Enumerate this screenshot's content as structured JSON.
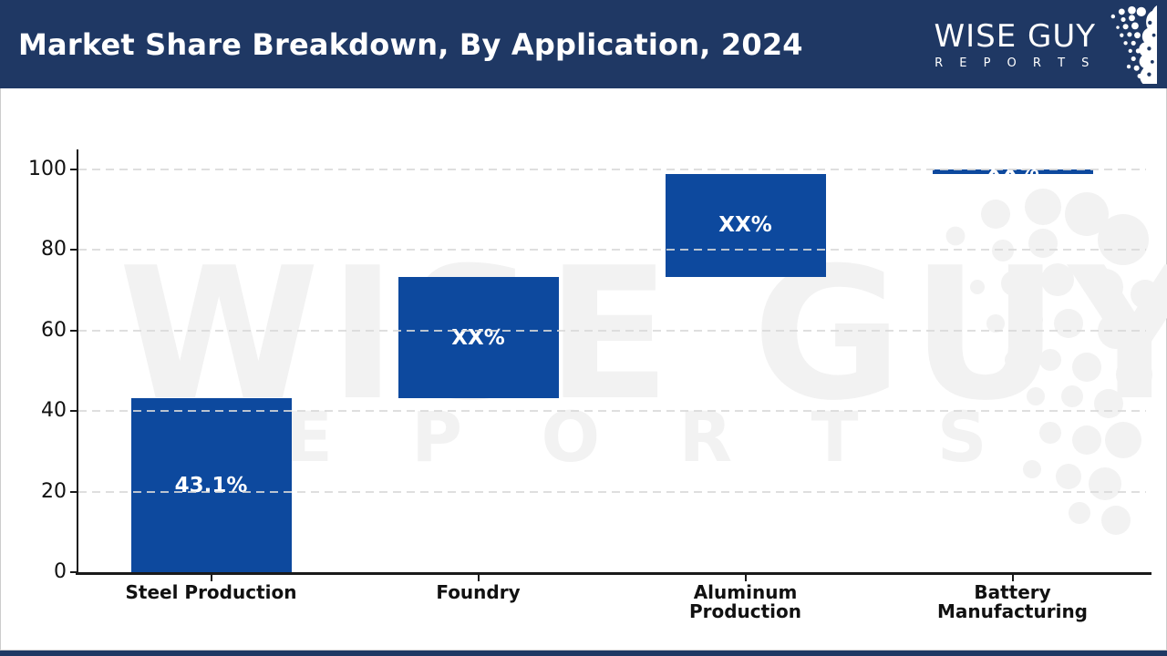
{
  "header": {
    "title": "Market Share Breakdown, By Application, 2024",
    "logo": {
      "name": "WISE GUY",
      "sub": "R E P O R T S"
    }
  },
  "watermark": {
    "line1": "WISE GUY",
    "line2": "R E P O R T S"
  },
  "chart_data": {
    "type": "bar",
    "subtype": "stacked-waterfall-segments",
    "title": "Market Share Breakdown, By Application, 2024",
    "categories": [
      "Steel Production",
      "Foundry",
      "Aluminum Production",
      "Battery Manufacturing"
    ],
    "category_lines": [
      [
        "Steel Production"
      ],
      [
        "Foundry"
      ],
      [
        "Aluminum",
        "Production"
      ],
      [
        "Battery",
        "Manufacturing"
      ]
    ],
    "segments": [
      {
        "category": "Steel Production",
        "start": 0,
        "end": 43.1,
        "label": "43.1%"
      },
      {
        "category": "Foundry",
        "start": 43.1,
        "end": 73.3,
        "label": "XX%"
      },
      {
        "category": "Aluminum Production",
        "start": 73.3,
        "end": 98.9,
        "label": "XX%"
      },
      {
        "category": "Battery Manufacturing",
        "start": 98.9,
        "end": 100,
        "label": "XX%"
      }
    ],
    "xlabel": "",
    "ylabel": "",
    "yticks": [
      0,
      20,
      40,
      60,
      80,
      100
    ],
    "ylim": [
      0,
      105
    ],
    "grid": true,
    "grid_style": "dashed",
    "legend": false,
    "bar_color": "#0d499e",
    "bar_label_color": "#ffffff",
    "axis_color": "#1a1a1a",
    "grid_color": "#d9d9d9"
  },
  "colors": {
    "header_bg": "#1f3864",
    "footer_bg": "#1f3864",
    "watermark": "#f2f2f2",
    "title_text": "#ffffff"
  }
}
